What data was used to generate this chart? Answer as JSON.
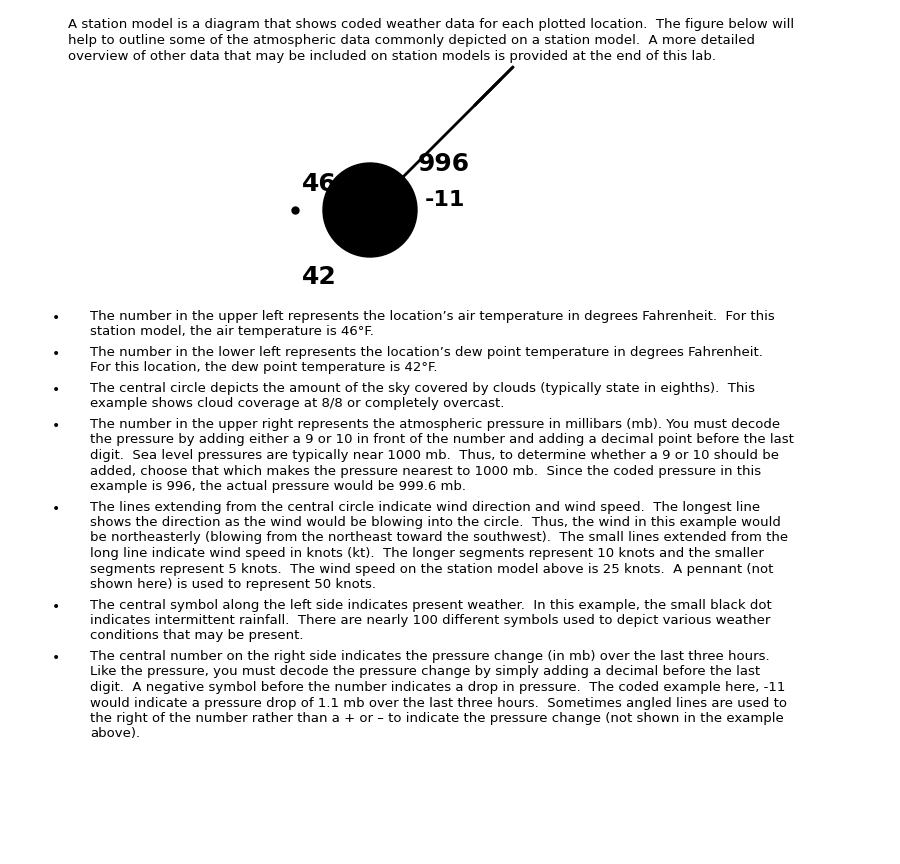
{
  "background_color": "#ffffff",
  "intro_text": "A station model is a diagram that shows coded weather data for each plotted location.  The figure below will\nhelp to outline some of the atmospheric data commonly depicted on a station model.  A more detailed\noverview of other data that may be included on station models is provided at the end of this lab.",
  "temp_label": "46",
  "dewpoint_label": "42",
  "pressure_label": "996",
  "pressure_change_label": "-11",
  "bullet_points": [
    "The number in the upper left represents the location’s air temperature in degrees Fahrenheit.  For this\nstation model, the air temperature is 46°F.",
    "The number in the lower left represents the location’s dew point temperature in degrees Fahrenheit.\nFor this location, the dew point temperature is 42°F.",
    "The central circle depicts the amount of the sky covered by clouds (typically state in eighths).  This\nexample shows cloud coverage at 8/8 or completely overcast.",
    "The number in the upper right represents the atmospheric pressure in millibars (mb). You must decode\nthe pressure by adding either a 9 or 10 in front of the number and adding a decimal point before the last\ndigit.  Sea level pressures are typically near 1000 mb.  Thus, to determine whether a 9 or 10 should be\nadded, choose that which makes the pressure nearest to 1000 mb.  Since the coded pressure in this\nexample is 996, the actual pressure would be 999.6 mb.",
    "The lines extending from the central circle indicate wind direction and wind speed.  The longest line\nshows the direction as the wind would be blowing into the circle.  Thus, the wind in this example would\nbe northeasterly (blowing from the northeast toward the southwest).  The small lines extended from the\nlong line indicate wind speed in knots (kt).  The longer segments represent 10 knots and the smaller\nsegments represent 5 knots.  The wind speed on the station model above is 25 knots.  A pennant (not\nshown here) is used to represent 50 knots.",
    "The central symbol along the left side indicates present weather.  In this example, the small black dot\nindicates intermittent rainfall.  There are nearly 100 different symbols used to depict various weather\nconditions that may be present.",
    "The central number on the right side indicates the pressure change (in mb) over the last three hours.\nLike the pressure, you must decode the pressure change by simply adding a decimal before the last\ndigit.  A negative symbol before the number indicates a drop in pressure.  The coded example here, -11\nwould indicate a pressure drop of 1.1 mb over the last three hours.  Sometimes angled lines are used to\nthe right of the number rather than a + or – to indicate the pressure change (not shown in the example\nabove)."
  ]
}
